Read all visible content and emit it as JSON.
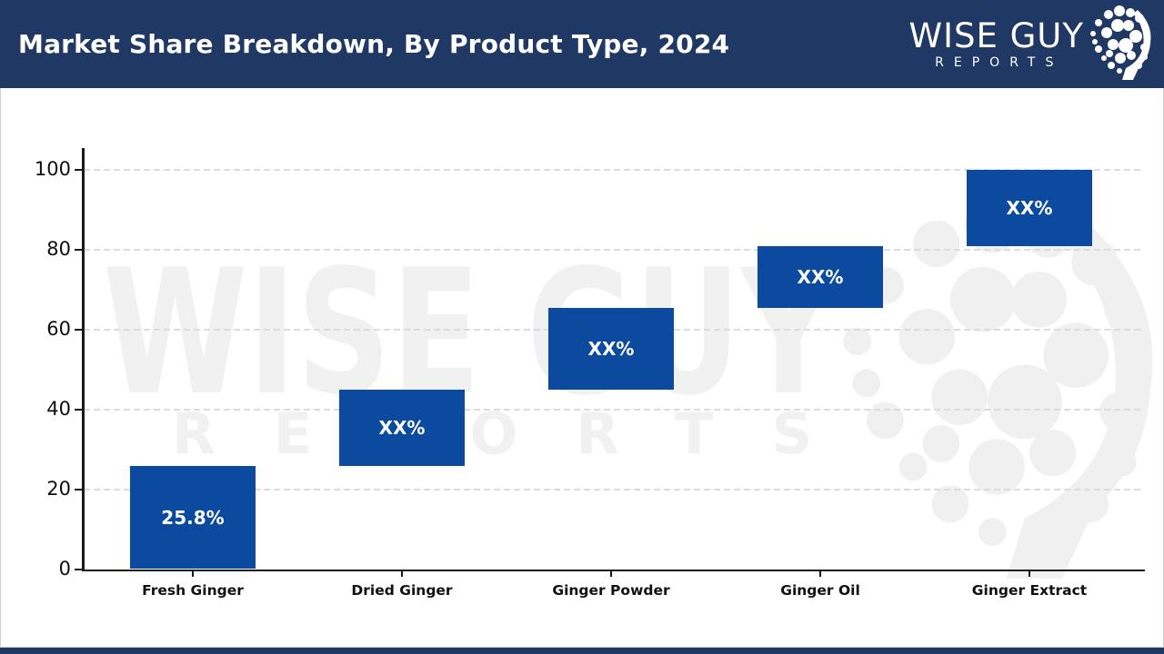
{
  "header": {
    "title": "Market Share Breakdown, By Product Type, 2024",
    "logo": {
      "line1": "WISE GUY",
      "line2": "REPORTS"
    }
  },
  "watermark": {
    "line1": "WISE GUY",
    "line2": "REPORTS"
  },
  "chart_data": {
    "type": "bar",
    "subtype": "floating-waterfall",
    "title": "Market Share Breakdown, By Product Type, 2024",
    "categories": [
      "Fresh Ginger",
      "Dried Ginger",
      "Ginger Powder",
      "Ginger Oil",
      "Ginger Extract"
    ],
    "bars": [
      {
        "category": "Fresh Ginger",
        "from": 0,
        "to": 25.8,
        "label": "25.8%"
      },
      {
        "category": "Dried Ginger",
        "from": 25.8,
        "to": 45,
        "label": "XX%"
      },
      {
        "category": "Ginger Powder",
        "from": 45,
        "to": 65.5,
        "label": "XX%"
      },
      {
        "category": "Ginger Oil",
        "from": 65.5,
        "to": 81,
        "label": "XX%"
      },
      {
        "category": "Ginger Extract",
        "from": 81,
        "to": 100,
        "label": "XX%"
      }
    ],
    "yticks": [
      0,
      20,
      40,
      60,
      80,
      100
    ],
    "ylim": [
      0,
      105
    ],
    "xlabel": "",
    "ylabel": "",
    "grid": "horizontal-dashed",
    "legend": "none",
    "bar_color": "#0c4aa0",
    "bar_label_color": "#ffffff"
  },
  "colors": {
    "header_bg": "#203864",
    "footer_bg": "#203864",
    "axis": "#1a1a1a",
    "grid": "#dcdcdc",
    "watermark": "#f1f1f1"
  }
}
